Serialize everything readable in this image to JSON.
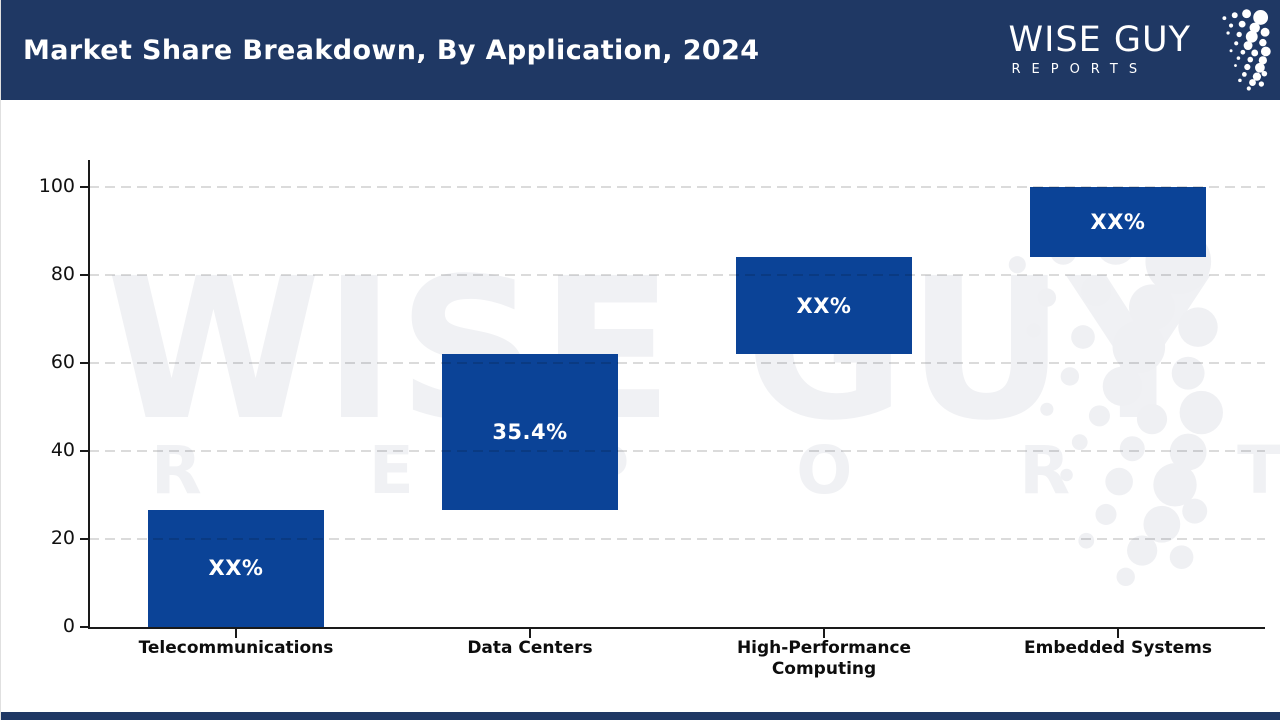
{
  "header": {
    "title": "Market Share Breakdown, By Application, 2024",
    "bg_color": "#1f3864",
    "logo": {
      "line1": "WISE GUY",
      "line2": "REPORTS",
      "icon": "dotted-head-icon"
    }
  },
  "watermark": {
    "line1": "WISE GUY",
    "line2": "R E P O R T S",
    "color": "#f0f1f4",
    "icon": "dotted-head-watermark"
  },
  "footer": {
    "bg_color": "#1f3864"
  },
  "chart_data": {
    "type": "bar",
    "variant": "floating-waterfall",
    "title": "Market Share Breakdown, By Application, 2024",
    "categories": [
      "Telecommunications",
      "Data Centers",
      "High-Performance Computing",
      "Embedded Systems"
    ],
    "segments": [
      {
        "category": "Telecommunications",
        "start": 0,
        "end": 26.6,
        "label": "XX%"
      },
      {
        "category": "Data Centers",
        "start": 26.6,
        "end": 62.0,
        "label": "35.4%"
      },
      {
        "category": "High-Performance Computing",
        "start": 62.0,
        "end": 84.0,
        "label": "XX%"
      },
      {
        "category": "Embedded Systems",
        "start": 84.0,
        "end": 100,
        "label": "XX%"
      }
    ],
    "y_ticks": [
      0,
      20,
      40,
      60,
      80,
      100
    ],
    "ylim": [
      0,
      100
    ],
    "bar_color": "#0b4397",
    "grid": "dashed-horizontal",
    "legend": "none",
    "xlabel": "",
    "ylabel": ""
  }
}
